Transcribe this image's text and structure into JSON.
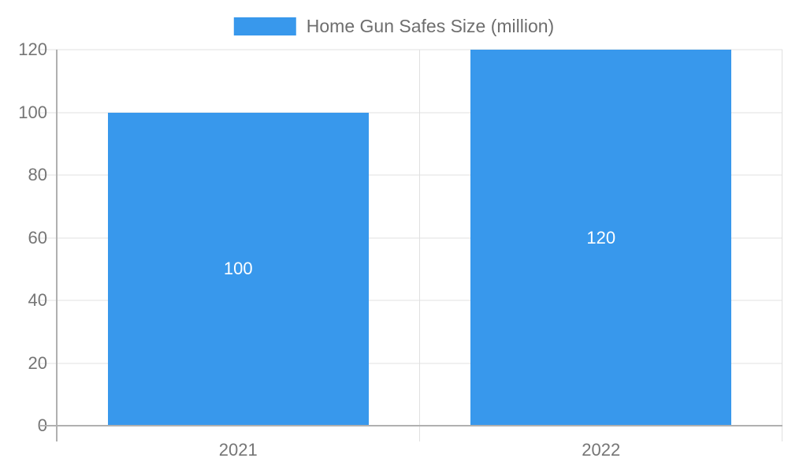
{
  "chart_data": {
    "type": "bar",
    "title": "",
    "xlabel": "",
    "ylabel": "",
    "categories": [
      "2021",
      "2022"
    ],
    "series": [
      {
        "name": "Home Gun Safes Size (million)",
        "values": [
          100,
          120
        ]
      }
    ],
    "bar_value_labels": [
      "100",
      "120"
    ],
    "ylim": [
      0,
      120
    ],
    "yticks": [
      0,
      20,
      40,
      60,
      80,
      100,
      120
    ],
    "grid": true,
    "legend": {
      "position": "top",
      "label": "Home Gun Safes Size (million)"
    },
    "colors": {
      "bar": "#3898EC",
      "axis_text": "#757575",
      "legend_text": "#6e6e6e",
      "gridline": "#e0e0e0",
      "axis_line": "#b0b0b0",
      "bar_label_text": "#ffffff",
      "background": "#ffffff"
    }
  }
}
